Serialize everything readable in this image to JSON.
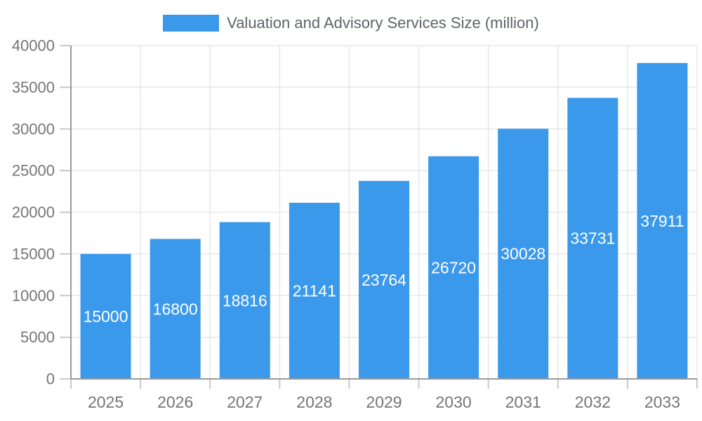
{
  "chart_data": {
    "type": "bar",
    "title": "Valuation and Advisory Services Size (million)",
    "categories": [
      "2025",
      "2026",
      "2027",
      "2028",
      "2029",
      "2030",
      "2031",
      "2032",
      "2033"
    ],
    "series": [
      {
        "name": "Valuation and Advisory Services Size (million)",
        "values": [
          15000,
          16800,
          18816,
          21141,
          23764,
          26720,
          30028,
          33731,
          37911
        ]
      }
    ],
    "data_labels": [
      "15000",
      "16800",
      "18816",
      "21141",
      "23764",
      "26720",
      "30028",
      "33731",
      "37911"
    ],
    "data_label_position": "inside-center",
    "xlabel": "",
    "ylabel": "",
    "ylim": [
      0,
      40000
    ],
    "ytick_step": 5000,
    "ytick_labels": [
      "0",
      "5000",
      "10000",
      "15000",
      "20000",
      "25000",
      "30000",
      "35000",
      "40000"
    ],
    "grid": true,
    "legend_position": "top-center"
  },
  "colors": {
    "bar_fill": "#3b99ec",
    "data_label_text": "#ffffff",
    "axis_text": "#757575",
    "title_text": "#5f6368",
    "grid_line": "#e8e8e8",
    "axis_line": "#9a9a9a",
    "tick_line": "#c9c9c9",
    "background": "#ffffff"
  }
}
